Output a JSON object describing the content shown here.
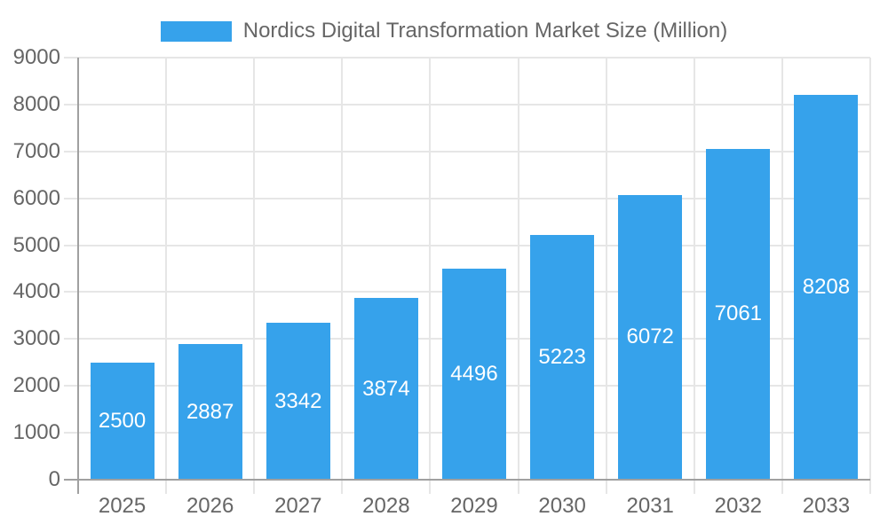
{
  "chart_data": {
    "type": "bar",
    "title": "Nordics Digital Transformation Market Size (Million)",
    "legend": {
      "label": "Nordics Digital Transformation Market Size (Million)",
      "position": "top-center",
      "marker_color": "#36A2EB"
    },
    "categories": [
      "2025",
      "2026",
      "2027",
      "2028",
      "2029",
      "2030",
      "2031",
      "2032",
      "2033"
    ],
    "values": [
      2500,
      2887,
      3342,
      3874,
      4496,
      5223,
      6072,
      7061,
      8208
    ],
    "series": [
      {
        "name": "Nordics Digital Transformation Market Size (Million)",
        "values": [
          2500,
          2887,
          3342,
          3874,
          4496,
          5223,
          6072,
          7061,
          8208
        ]
      }
    ],
    "xlabel": "",
    "ylabel": "",
    "ylim": [
      0,
      9000
    ],
    "ytick_step": 1000,
    "y_ticks": [
      "0",
      "1000",
      "2000",
      "3000",
      "4000",
      "5000",
      "6000",
      "7000",
      "8000",
      "9000"
    ],
    "grid": {
      "horizontal": true,
      "vertical": true
    },
    "data_labels": {
      "visible": true,
      "position": "inside-center"
    },
    "colors": {
      "bar": "#36A2EB",
      "bar_label": "#FFFFFF",
      "gridline": "#E6E6E6",
      "axis_line": "#A0A0A0",
      "tick_label": "#666666",
      "legend_text": "#666666",
      "background": "#FFFFFF"
    }
  }
}
